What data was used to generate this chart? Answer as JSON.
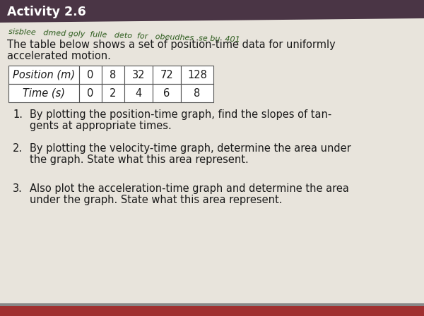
{
  "title": "Activity 2.6",
  "title_bg": "#4a3545",
  "title_text_color": "#ffffff",
  "body_bg": "#d8d4cc",
  "page_bg": "#e8e4dc",
  "border_color": "#999999",
  "intro_text_line1": "The table below shows a set of position-time data for uniformly",
  "intro_text_line2": "accelerated motion.",
  "table_headers": [
    "Position (m)",
    "0",
    "8",
    "32",
    "72",
    "128"
  ],
  "table_row2": [
    "Time (s)",
    "0",
    "2",
    "4",
    "6",
    "8"
  ],
  "item1_num": "1.",
  "item1_line1": "By plotting the position-time graph, find the slopes of tan-",
  "item1_line2": "gents at appropriate times.",
  "item2_num": "2.",
  "item2_line1": "By plotting the velocity-time graph, determine the area under",
  "item2_line2": "the graph. State what this area represent.",
  "item3_num": "3.",
  "item3_line1": "Also plot the acceleration-time graph and determine the area",
  "item3_line2": "under the graph. State what this area represent.",
  "handwriting_color": "#2a5a1a",
  "main_font_size": 10.5,
  "small_font_size": 8.0,
  "body_text_color": "#1a1a1a",
  "title_font_size": 12.5,
  "bottom_red": "#a03030",
  "bottom_red2": "#c04040"
}
